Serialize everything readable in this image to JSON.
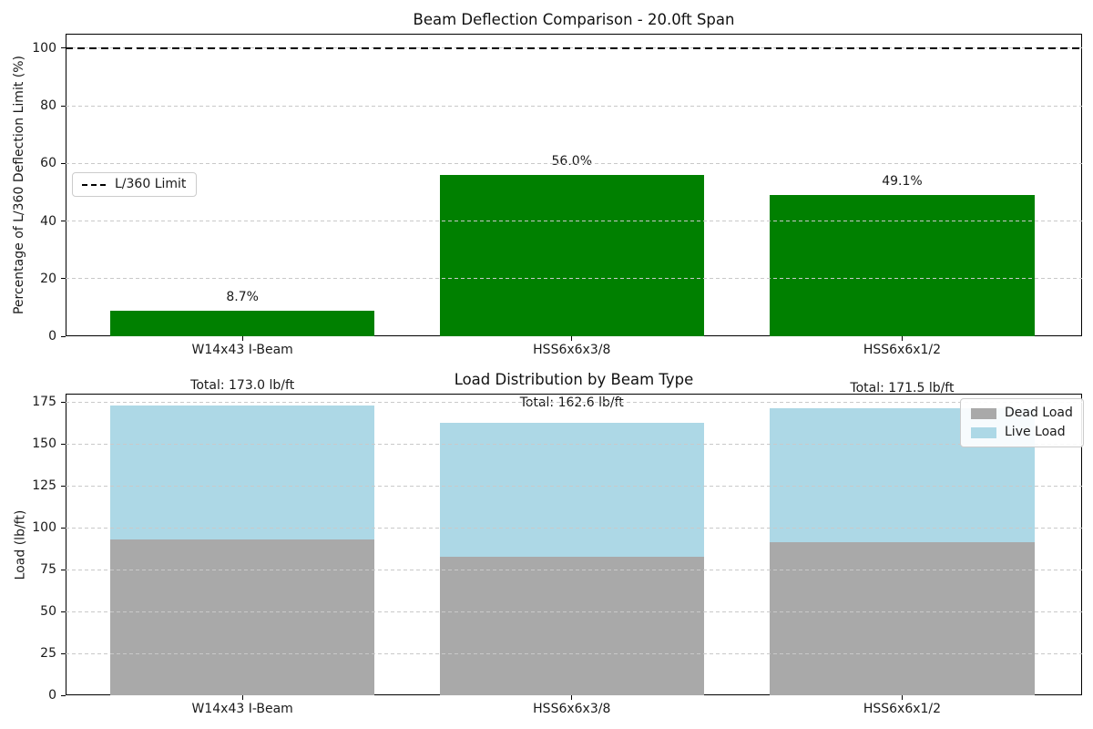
{
  "figure": {
    "background": "#ffffff"
  },
  "chart_data": [
    {
      "type": "bar",
      "title": "Beam Deflection Comparison - 20.0ft Span",
      "ylabel": "Percentage of L/360 Deflection Limit (%)",
      "categories": [
        "W14x43 I-Beam",
        "HSS6x6x3/8",
        "HSS6x6x1/2"
      ],
      "values": [
        8.7,
        56.0,
        49.1
      ],
      "bar_labels": [
        "8.7%",
        "56.0%",
        "49.1%"
      ],
      "bar_color": "#008000",
      "ylim": [
        0,
        105
      ],
      "yticks": [
        0,
        20,
        40,
        60,
        80,
        100
      ],
      "grid": true,
      "grid_style": "dashed",
      "limit_line": {
        "value": 100,
        "color": "#000000",
        "style": "dashed"
      },
      "legend": {
        "position": "center-left",
        "entries": [
          {
            "label": "L/360 Limit",
            "marker": "dashed-line",
            "color": "#000000"
          }
        ]
      }
    },
    {
      "type": "stacked-bar",
      "title": "Load Distribution by Beam Type",
      "ylabel": "Load (lb/ft)",
      "categories": [
        "W14x43 I-Beam",
        "HSS6x6x3/8",
        "HSS6x6x1/2"
      ],
      "series": [
        {
          "name": "Dead Load",
          "color": "#a9a9a9",
          "values": [
            93.0,
            82.6,
            91.5
          ]
        },
        {
          "name": "Live Load",
          "color": "#add8e6",
          "values": [
            80.0,
            80.0,
            80.0
          ]
        }
      ],
      "totals": [
        173.0,
        162.6,
        171.5
      ],
      "total_labels": [
        "Total: 173.0 lb/ft",
        "Total: 162.6 lb/ft",
        "Total: 171.5 lb/ft"
      ],
      "ylim": [
        0,
        180
      ],
      "yticks": [
        0,
        25,
        50,
        75,
        100,
        125,
        150,
        175
      ],
      "grid": true,
      "grid_style": "dashed",
      "legend": {
        "position": "top-right",
        "entries": [
          {
            "label": "Dead Load",
            "marker": "patch",
            "color": "#a9a9a9"
          },
          {
            "label": "Live Load",
            "marker": "patch",
            "color": "#add8e6"
          }
        ]
      }
    }
  ]
}
